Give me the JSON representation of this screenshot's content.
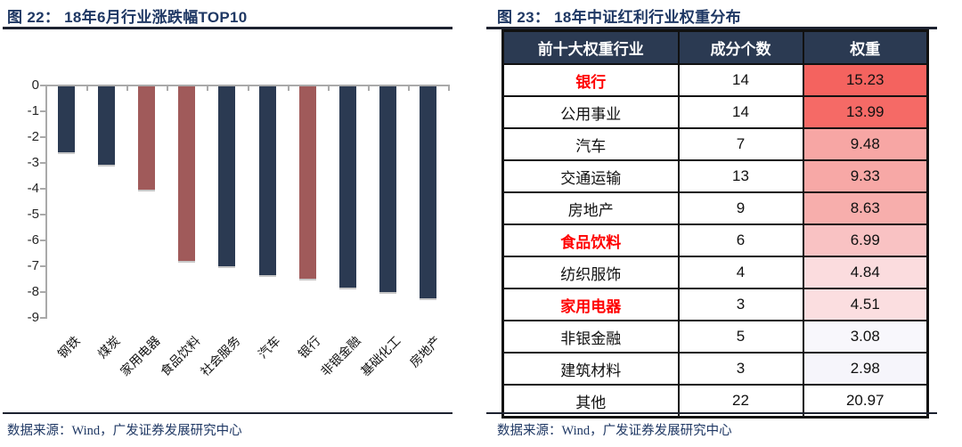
{
  "figures": [
    {
      "label": "图 22：",
      "title": "图 22： 18年6月行业涨跌幅TOP10",
      "source": "数据来源：Wind，广发证券发展研究中心"
    },
    {
      "label": "图 23：",
      "title": "图 23： 18年中证红利行业权重分布",
      "source": "数据来源：Wind，广发证券发展研究中心"
    }
  ],
  "colors": {
    "title_navy": "#1f3864",
    "bar_navy": "#2b3a52",
    "bar_red": "#a05a5a",
    "table_header_bg": "#2b3a52",
    "red_text": "#ff0000",
    "axis_gray": "#aaaaaa"
  },
  "chart_data": [
    {
      "type": "bar",
      "title": "18年6月行业涨跌幅TOP10",
      "categories": [
        "钢铁",
        "煤炭",
        "家用电器",
        "食品饮料",
        "社会服务",
        "汽车",
        "银行",
        "非银金融",
        "基础化工",
        "房地产"
      ],
      "values": [
        -2.55,
        -3.05,
        -4.0,
        -6.75,
        -6.95,
        -7.3,
        -7.45,
        -7.8,
        -7.95,
        -8.2
      ],
      "highlighted_categories": [
        "家用电器",
        "食品饮料",
        "银行"
      ],
      "bar_color": "#2b3a52",
      "highlight_color": "#a05a5a",
      "xlabel": "",
      "ylabel": "",
      "ylim": [
        -9,
        0
      ],
      "yticks": [
        0,
        -1,
        -2,
        -3,
        -4,
        -5,
        -6,
        -7,
        -8,
        -9
      ],
      "grid": false,
      "legend": false
    },
    {
      "type": "table",
      "title": "18年中证红利行业权重分布",
      "headers": [
        "前十大权重行业",
        "成分个数",
        "权重"
      ],
      "rows": [
        {
          "industry": "银行",
          "count": "14",
          "weight": "15.23",
          "red_text": true,
          "weight_bg": "#f4635f"
        },
        {
          "industry": "公用事业",
          "count": "14",
          "weight": "13.99",
          "red_text": false,
          "weight_bg": "#f56a66"
        },
        {
          "industry": "汽车",
          "count": "7",
          "weight": "9.48",
          "red_text": false,
          "weight_bg": "#f7a6a4"
        },
        {
          "industry": "交通运输",
          "count": "13",
          "weight": "9.33",
          "red_text": false,
          "weight_bg": "#f7a8a6"
        },
        {
          "industry": "房地产",
          "count": "9",
          "weight": "8.63",
          "red_text": false,
          "weight_bg": "#f7aeac"
        },
        {
          "industry": "食品饮料",
          "count": "6",
          "weight": "6.99",
          "red_text": true,
          "weight_bg": "#f9c2c3"
        },
        {
          "industry": "纺织服饰",
          "count": "4",
          "weight": "4.84",
          "red_text": false,
          "weight_bg": "#fbdcde"
        },
        {
          "industry": "家用电器",
          "count": "3",
          "weight": "4.51",
          "red_text": true,
          "weight_bg": "#fbdee0"
        },
        {
          "industry": "非银金融",
          "count": "5",
          "weight": "3.08",
          "red_text": false,
          "weight_bg": "#f8f7fc"
        },
        {
          "industry": "建筑材料",
          "count": "3",
          "weight": "2.98",
          "red_text": false,
          "weight_bg": "#f6f5fb"
        },
        {
          "industry": "其他",
          "count": "22",
          "weight": "20.97",
          "red_text": false,
          "weight_bg": "#ffffff"
        }
      ]
    }
  ]
}
